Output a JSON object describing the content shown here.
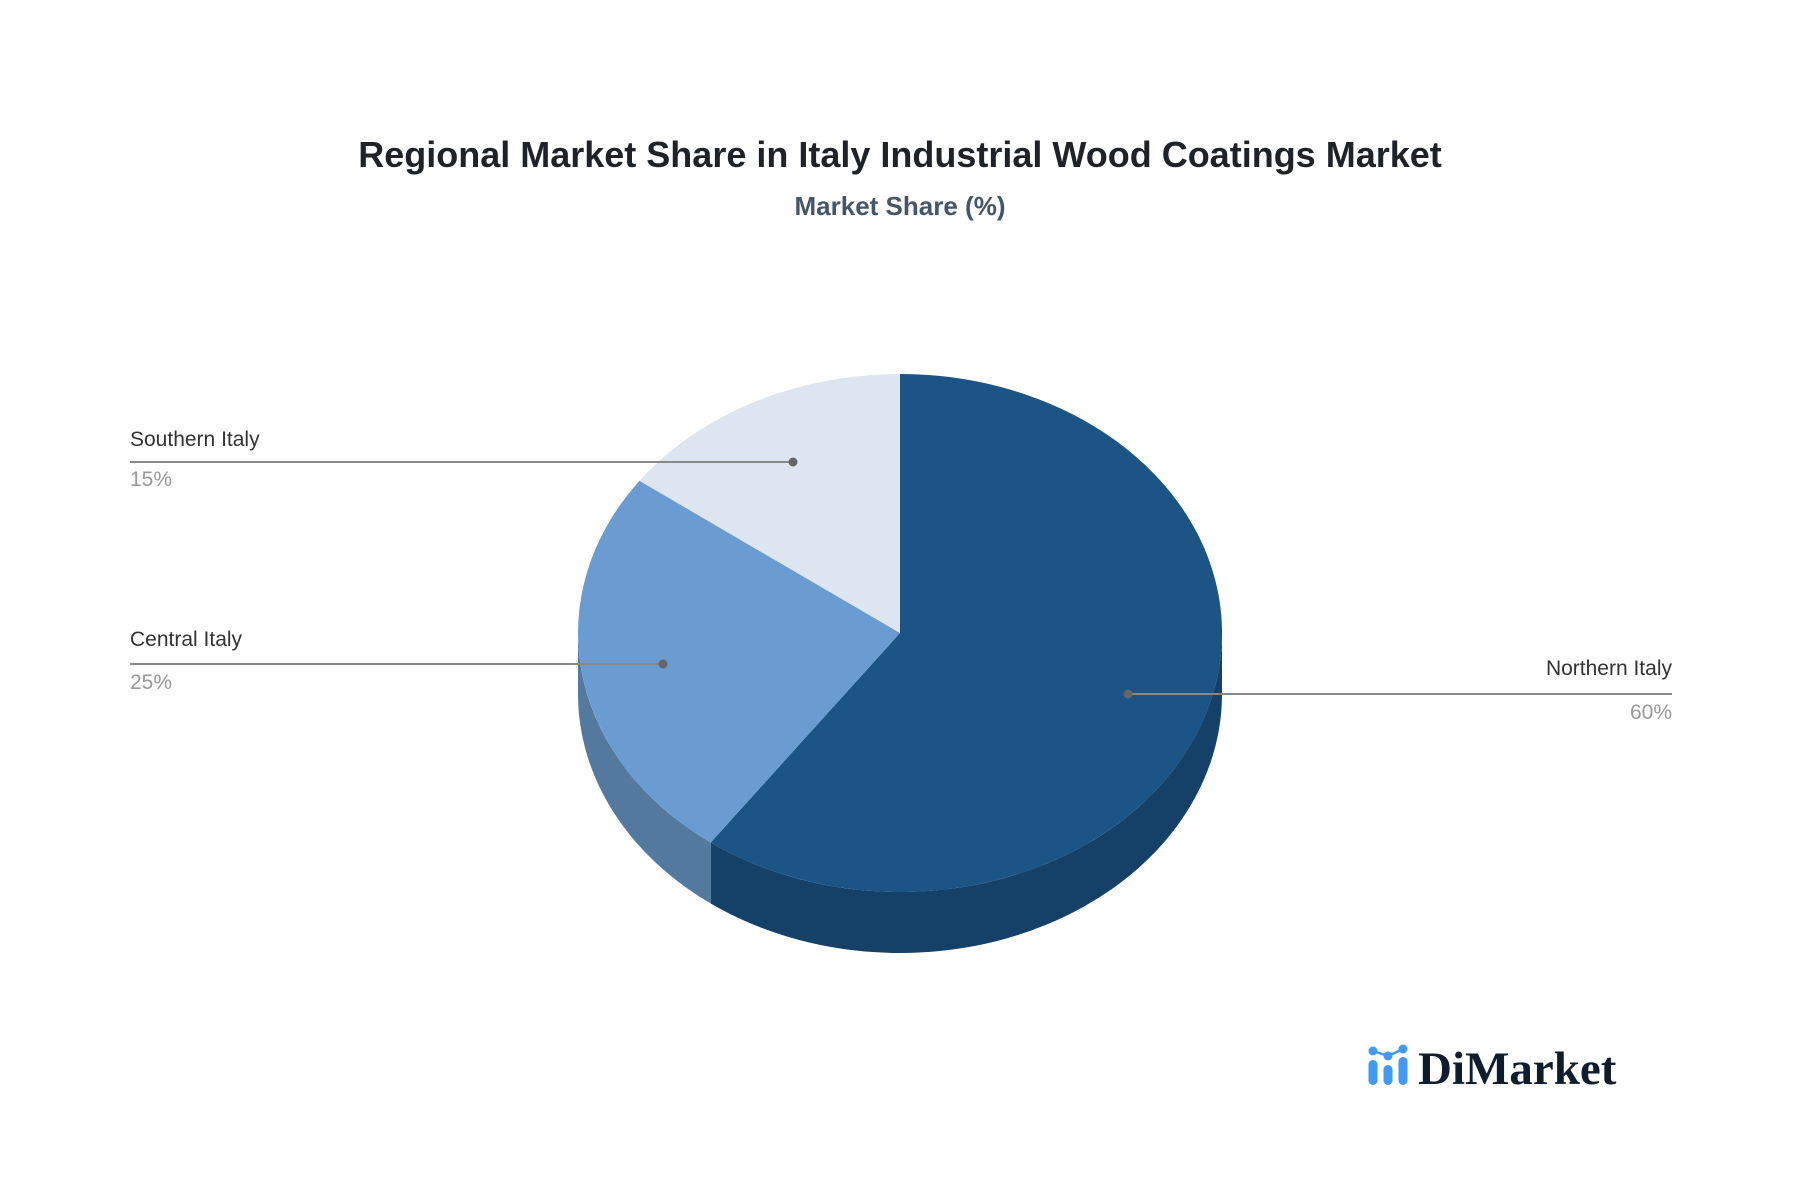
{
  "title": "Regional Market Share in Italy Industrial Wood Coatings Market",
  "subtitle": "Market Share (%)",
  "chart_data": {
    "type": "pie",
    "title": "Regional Market Share in Italy Industrial Wood Coatings Market",
    "subtitle": "Market Share (%)",
    "unit": "%",
    "style": "3d-pie",
    "start_angle_deg": 0,
    "direction": "clockwise",
    "legend": "none",
    "slices": [
      {
        "label": "Northern Italy",
        "value": 60,
        "display": "60%",
        "color": "#1d5486",
        "side_color": "#154067"
      },
      {
        "label": "Central Italy",
        "value": 25,
        "display": "25%",
        "color": "#6b9cd1",
        "side_color": "#54799f"
      },
      {
        "label": "Southern Italy",
        "value": 15,
        "display": "15%",
        "color": "#dde5f0",
        "side_color": "#b9c6d8"
      }
    ]
  },
  "colors": {
    "background": "#ffffff",
    "title_text": "#1f2328",
    "subtitle_text": "#475569",
    "label_text": "#333333",
    "value_text": "#999999",
    "connector_line": "#888888",
    "connector_dot": "#666666",
    "logo_accent": "#3f9bf7",
    "logo_text": "#0e1c2c"
  },
  "logo": {
    "text": "DiMarket",
    "icon": "bar-chart-logo-icon"
  }
}
